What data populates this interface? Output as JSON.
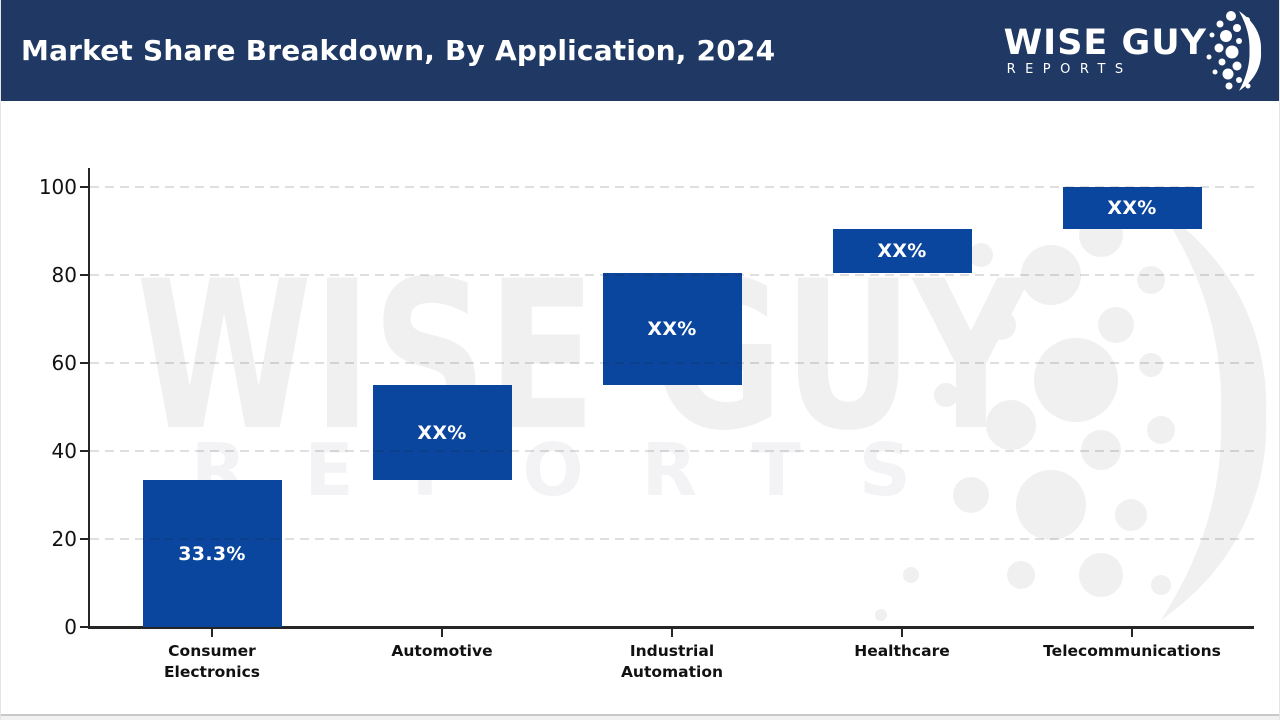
{
  "header": {
    "title": "Market Share Breakdown, By Application, 2024",
    "logo": {
      "line1": "WISE GUY",
      "line2": "REPORTS"
    }
  },
  "watermark": {
    "line1": "WISE GUY",
    "line2": "REPORTS"
  },
  "colors": {
    "header_bg": "#1f3864",
    "bar": "#0a459e",
    "axis": "#262626",
    "bar_label": "#ffffff",
    "watermark": "#f0f0f1"
  },
  "chart_data": {
    "type": "bar",
    "subtype": "floating-waterfall",
    "title": "Market Share Breakdown, By Application, 2024",
    "categories": [
      "Consumer\nElectronics",
      "Automotive",
      "Industrial\nAutomation",
      "Healthcare",
      "Telecommunications"
    ],
    "segments": [
      {
        "category": "Consumer Electronics",
        "start": 0,
        "end": 33.3,
        "label": "33.3%"
      },
      {
        "category": "Automotive",
        "start": 33.3,
        "end": 55,
        "label": "XX%"
      },
      {
        "category": "Industrial Automation",
        "start": 55,
        "end": 80.5,
        "label": "XX%"
      },
      {
        "category": "Healthcare",
        "start": 80.5,
        "end": 90.5,
        "label": "XX%"
      },
      {
        "category": "Telecommunications",
        "start": 90.5,
        "end": 100,
        "label": "XX%"
      }
    ],
    "yticks": [
      0,
      20,
      40,
      60,
      80,
      100
    ],
    "ylim": [
      0,
      104
    ],
    "xlabel": "",
    "ylabel": "",
    "grid": "horizontal-dashed",
    "legend": "none"
  }
}
